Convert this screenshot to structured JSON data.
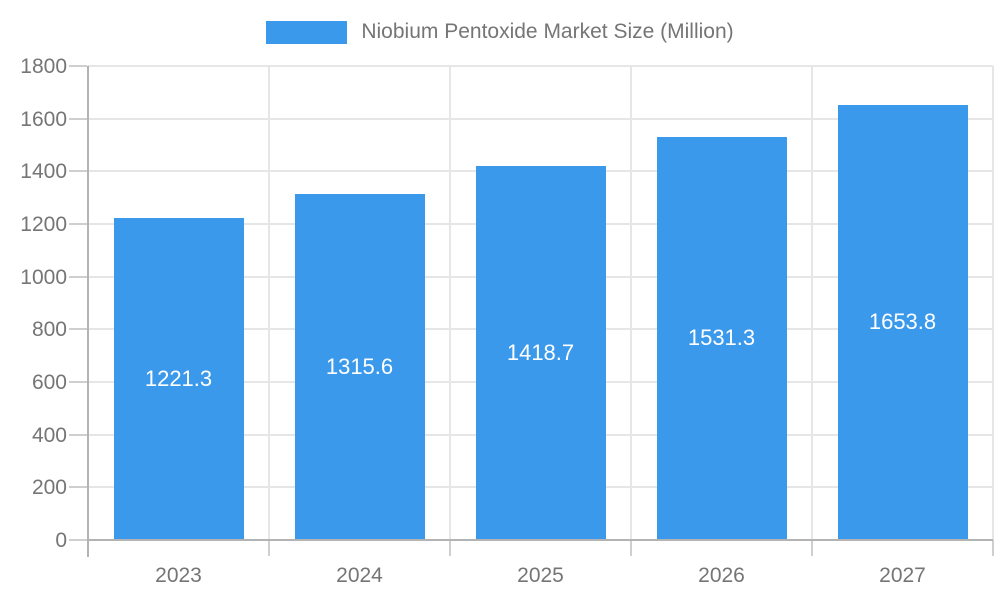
{
  "chart_data": {
    "type": "bar",
    "title": "Niobium Pentoxide Market Size (Million)",
    "legend_position": "top",
    "categories": [
      "2023",
      "2024",
      "2025",
      "2026",
      "2027"
    ],
    "series": [
      {
        "name": "Niobium Pentoxide Market Size (Million)",
        "values": [
          1221.3,
          1315.6,
          1418.7,
          1531.3,
          1653.8
        ],
        "value_labels": [
          "1221.3",
          "1315.6",
          "1418.7",
          "1531.3",
          "1653.8"
        ]
      }
    ],
    "xlabel": "",
    "ylabel": "",
    "ylim": [
      0,
      1800
    ],
    "ytick_step": 200,
    "ytick_labels": [
      "0",
      "200",
      "400",
      "600",
      "800",
      "1000",
      "1200",
      "1400",
      "1600",
      "1800"
    ],
    "grid": true,
    "colors": {
      "bar": "#3B99EC",
      "bar_value_text": "#ffffff",
      "axis_text": "#757575",
      "legend_text": "#757575",
      "gridline": "#e6e6e6",
      "tick": "#cfcfcf",
      "axis_line": "#b3b3b3",
      "background": "#ffffff"
    }
  }
}
